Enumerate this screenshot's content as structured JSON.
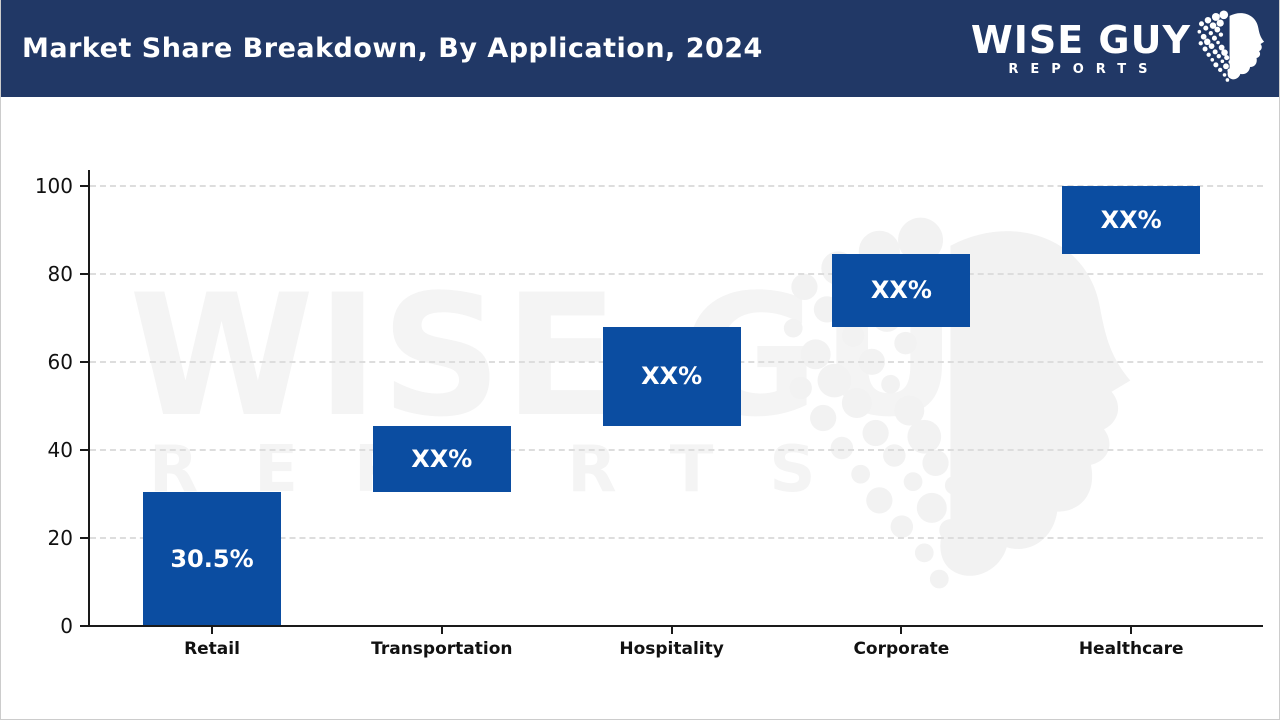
{
  "header": {
    "title": "Market Share Breakdown, By Application, 2024",
    "bg_color": "#213866",
    "logo": {
      "line1": "WISE GUY",
      "line2": "REPORTS"
    }
  },
  "watermark": {
    "line1": "WISE GUY",
    "line2": "REPORTS"
  },
  "chart_data": {
    "type": "bar",
    "subtype": "waterfall-stacked-steps",
    "title": "Market Share Breakdown, By Application, 2024",
    "categories": [
      "Retail",
      "Transportation",
      "Hospitality",
      "Corporate",
      "Healthcare"
    ],
    "segments": [
      {
        "category": "Retail",
        "start": 0,
        "end": 30.5,
        "label": "30.5%"
      },
      {
        "category": "Transportation",
        "start": 30.5,
        "end": 45.5,
        "label": "XX%"
      },
      {
        "category": "Hospitality",
        "start": 45.5,
        "end": 68,
        "label": "XX%"
      },
      {
        "category": "Corporate",
        "start": 68,
        "end": 84.5,
        "label": "XX%"
      },
      {
        "category": "Healthcare",
        "start": 84.5,
        "end": 100,
        "label": "XX%"
      }
    ],
    "yticks": [
      0,
      20,
      40,
      60,
      80,
      100
    ],
    "ylim": [
      0,
      104
    ],
    "xlabel": "",
    "ylabel": "",
    "bar_color": "#0b4da1",
    "bar_label_color": "#ffffff",
    "grid": "horizontal-dashed",
    "gridline_color": "#dddddd",
    "legend": "none"
  }
}
